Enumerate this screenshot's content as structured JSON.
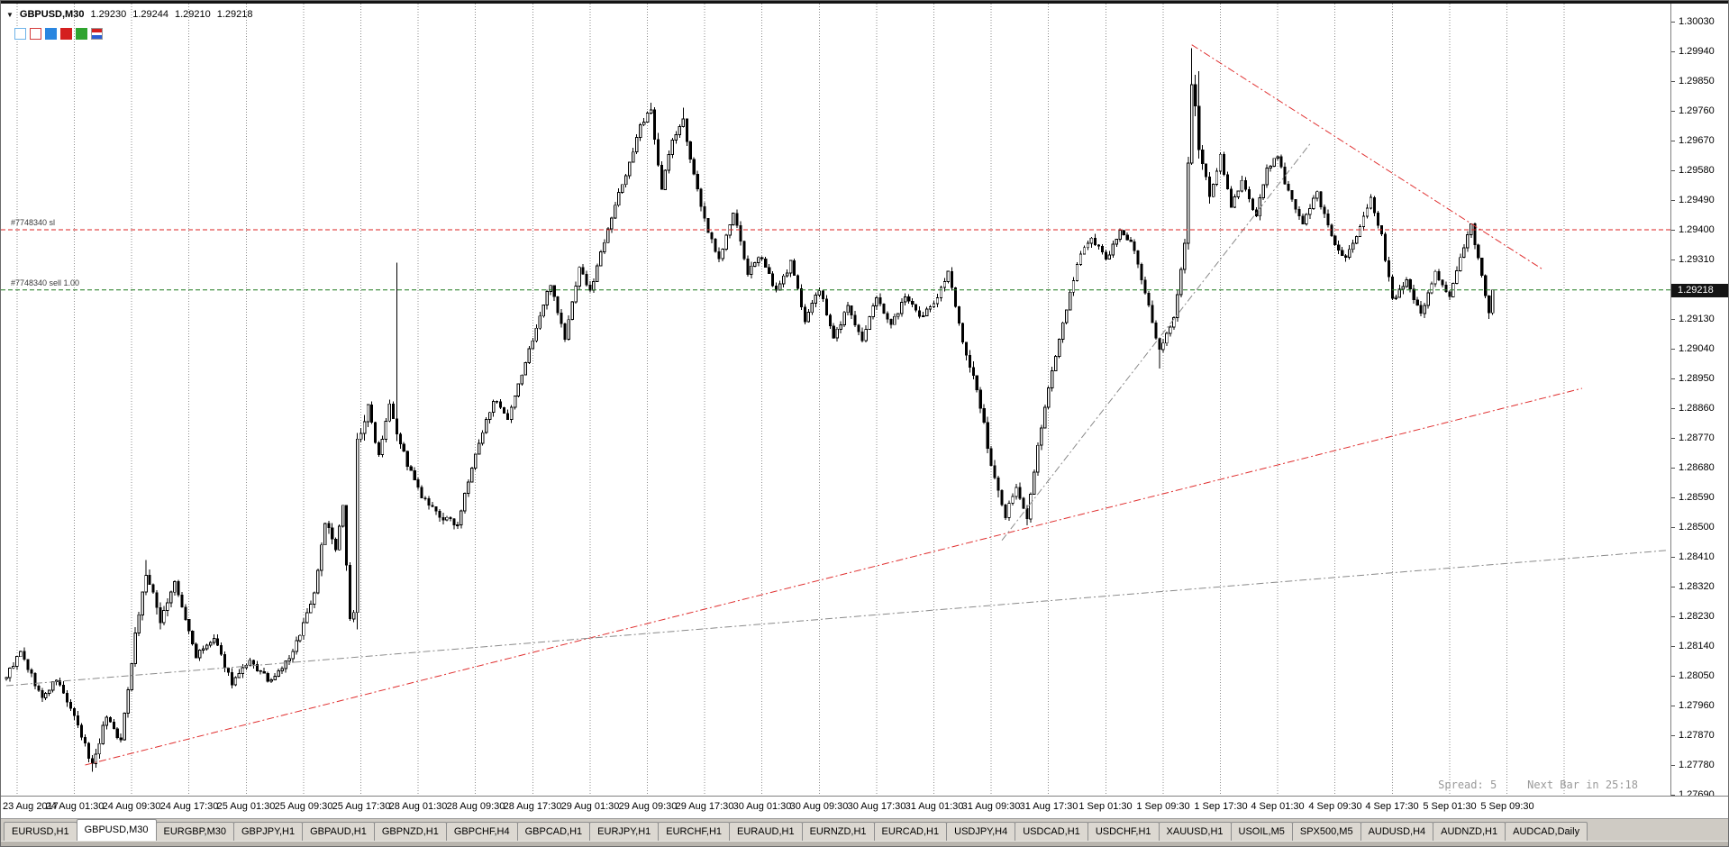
{
  "header": {
    "collapse_icon": "▼",
    "symbol": "GBPUSD,M30",
    "open": "1.29230",
    "high": "1.29244",
    "low": "1.29210",
    "close": "1.29218"
  },
  "toolbar": {
    "swatches": [
      {
        "name": "outlined-blue-swatch",
        "fill": "#ffffff",
        "border": "#6fb3e8"
      },
      {
        "name": "outlined-red-swatch",
        "fill": "#ffffff",
        "border": "#d43c3c"
      },
      {
        "name": "blue-swatch",
        "fill": "#2a86e0",
        "border": "#2a86e0"
      },
      {
        "name": "red-swatch",
        "fill": "#d41f1f",
        "border": "#d41f1f"
      },
      {
        "name": "green-swatch",
        "fill": "#2fa42f",
        "border": "#2fa42f"
      },
      {
        "name": "striped-swatch",
        "stripes": [
          "#d41f1f",
          "#ffffff",
          "#2a5fd4"
        ]
      }
    ]
  },
  "plot": {
    "price_badge": "1.29218",
    "spread_label": "Spread: 5",
    "next_bar_label": "Next Bar in 25:18"
  },
  "chart_data": {
    "type": "candlestick",
    "instrument": "GBPUSD",
    "timeframe": "M30",
    "current": {
      "open": 1.2923,
      "high": 1.29244,
      "low": 1.2921,
      "close": 1.29218
    },
    "price_axis": {
      "top": 1.3003,
      "bottom": 1.2769,
      "step": 0.0009
    },
    "price_labels": [
      "1.30030",
      "1.29940",
      "1.29850",
      "1.29760",
      "1.29670",
      "1.29580",
      "1.29490",
      "1.29400",
      "1.29310",
      "1.29220",
      "1.29130",
      "1.29040",
      "1.28950",
      "1.28860",
      "1.28770",
      "1.28680",
      "1.28590",
      "1.28500",
      "1.28410",
      "1.28320",
      "1.28230",
      "1.28140",
      "1.28050",
      "1.27960",
      "1.27870",
      "1.27780",
      "1.27690"
    ],
    "time_labels": [
      "23 Aug 2017",
      "24 Aug 01:30",
      "24 Aug 09:30",
      "24 Aug 17:30",
      "25 Aug 01:30",
      "25 Aug 09:30",
      "25 Aug 17:30",
      "28 Aug 01:30",
      "28 Aug 09:30",
      "28 Aug 17:30",
      "29 Aug 01:30",
      "29 Aug 09:30",
      "29 Aug 17:30",
      "30 Aug 01:30",
      "30 Aug 09:30",
      "30 Aug 17:30",
      "31 Aug 01:30",
      "31 Aug 09:30",
      "31 Aug 17:30",
      "1 Sep 01:30",
      "1 Sep 09:30",
      "1 Sep 17:30",
      "4 Sep 01:30",
      "4 Sep 09:30",
      "4 Sep 17:30",
      "5 Sep 01:30",
      "5 Sep 09:30"
    ],
    "bars_total": 416,
    "first_label_bar": 3,
    "label_every_bars": 16,
    "waypoints": [
      [
        0,
        1.2805,
        2
      ],
      [
        4,
        1.2812,
        2
      ],
      [
        10,
        1.2798,
        2
      ],
      [
        14,
        1.2804,
        2
      ],
      [
        18,
        1.2795,
        2
      ],
      [
        24,
        1.2778,
        3
      ],
      [
        28,
        1.2793,
        2
      ],
      [
        32,
        1.2785,
        2
      ],
      [
        36,
        1.2818,
        3
      ],
      [
        39,
        1.2836,
        3
      ],
      [
        43,
        1.2822,
        3
      ],
      [
        47,
        1.2833,
        2
      ],
      [
        53,
        1.2811,
        2
      ],
      [
        58,
        1.2816,
        2
      ],
      [
        63,
        1.2803,
        2
      ],
      [
        68,
        1.2809,
        2
      ],
      [
        74,
        1.2803,
        2
      ],
      [
        80,
        1.2812,
        2
      ],
      [
        86,
        1.283,
        2
      ],
      [
        89,
        1.2852,
        3
      ],
      [
        92,
        1.2843,
        2
      ],
      [
        94,
        1.2856,
        2
      ],
      [
        96,
        1.2823,
        3
      ],
      [
        97,
        1.2824,
        2
      ],
      [
        98,
        1.2876,
        4
      ],
      [
        101,
        1.2886,
        3
      ],
      [
        104,
        1.2872,
        2
      ],
      [
        107,
        1.2888,
        2
      ],
      [
        109,
        1.2879,
        3
      ],
      [
        112,
        1.2869,
        2
      ],
      [
        116,
        1.2859,
        2
      ],
      [
        121,
        1.2853,
        2
      ],
      [
        126,
        1.2851,
        2
      ],
      [
        130,
        1.2868,
        2
      ],
      [
        136,
        1.2889,
        2
      ],
      [
        140,
        1.2882,
        2
      ],
      [
        147,
        1.2907,
        2
      ],
      [
        152,
        1.2924,
        2
      ],
      [
        156,
        1.2907,
        2
      ],
      [
        160,
        1.2929,
        2
      ],
      [
        163,
        1.2921,
        2
      ],
      [
        168,
        1.2941,
        2
      ],
      [
        173,
        1.2957,
        2
      ],
      [
        177,
        1.2971,
        2
      ],
      [
        180,
        1.2976,
        3
      ],
      [
        183,
        1.2953,
        3
      ],
      [
        186,
        1.2967,
        2
      ],
      [
        189,
        1.2973,
        2
      ],
      [
        192,
        1.2956,
        2
      ],
      [
        195,
        1.2943,
        2
      ],
      [
        199,
        1.2931,
        2
      ],
      [
        203,
        1.2945,
        2
      ],
      [
        207,
        1.2927,
        2
      ],
      [
        211,
        1.2932,
        2
      ],
      [
        215,
        1.2921,
        2
      ],
      [
        219,
        1.293,
        2
      ],
      [
        223,
        1.2913,
        2
      ],
      [
        227,
        1.2922,
        2
      ],
      [
        231,
        1.2907,
        2
      ],
      [
        235,
        1.2917,
        2
      ],
      [
        239,
        1.2906,
        2
      ],
      [
        243,
        1.292,
        2
      ],
      [
        247,
        1.2911,
        2
      ],
      [
        251,
        1.292,
        2
      ],
      [
        255,
        1.2913,
        2
      ],
      [
        259,
        1.2918,
        2
      ],
      [
        263,
        1.2927,
        2
      ],
      [
        267,
        1.2906,
        2
      ],
      [
        271,
        1.2892,
        3
      ],
      [
        275,
        1.2869,
        3
      ],
      [
        279,
        1.2854,
        3
      ],
      [
        282,
        1.2862,
        2
      ],
      [
        285,
        1.2852,
        2
      ],
      [
        288,
        1.2875,
        3
      ],
      [
        291,
        1.2892,
        2
      ],
      [
        295,
        1.2911,
        2
      ],
      [
        299,
        1.293,
        2
      ],
      [
        303,
        1.2938,
        2
      ],
      [
        307,
        1.2931,
        2
      ],
      [
        311,
        1.294,
        2
      ],
      [
        315,
        1.2934,
        2
      ],
      [
        319,
        1.2917,
        2
      ],
      [
        322,
        1.2903,
        2
      ],
      [
        326,
        1.2913,
        2
      ],
      [
        329,
        1.2936,
        3
      ],
      [
        331,
        1.2986,
        5
      ],
      [
        333,
        1.2965,
        4
      ],
      [
        336,
        1.295,
        3
      ],
      [
        339,
        1.2962,
        2
      ],
      [
        342,
        1.2947,
        2
      ],
      [
        345,
        1.2955,
        2
      ],
      [
        349,
        1.2944,
        2
      ],
      [
        352,
        1.2959,
        2
      ],
      [
        355,
        1.2962,
        2
      ],
      [
        358,
        1.2951,
        2
      ],
      [
        362,
        1.2942,
        2
      ],
      [
        366,
        1.2951,
        2
      ],
      [
        370,
        1.2938,
        2
      ],
      [
        374,
        1.2931,
        2
      ],
      [
        378,
        1.2941,
        2
      ],
      [
        381,
        1.2949,
        2
      ],
      [
        384,
        1.2938,
        2
      ],
      [
        387,
        1.2918,
        3
      ],
      [
        391,
        1.2924,
        2
      ],
      [
        395,
        1.2914,
        2
      ],
      [
        399,
        1.2927,
        2
      ],
      [
        403,
        1.292,
        2
      ],
      [
        406,
        1.2932,
        2
      ],
      [
        409,
        1.2941,
        2
      ],
      [
        412,
        1.2926,
        2
      ],
      [
        414,
        1.2915,
        2
      ],
      [
        415,
        1.29218,
        1
      ]
    ],
    "forced_wicks": [
      [
        24,
        "low",
        1.2776
      ],
      [
        39,
        "high",
        1.284
      ],
      [
        98,
        "low",
        1.2819
      ],
      [
        109,
        "high",
        1.293
      ],
      [
        180,
        "high",
        1.29785
      ],
      [
        189,
        "high",
        1.2977
      ],
      [
        285,
        "low",
        1.28505
      ],
      [
        322,
        "low",
        1.2898
      ],
      [
        331,
        "high",
        1.2995
      ],
      [
        333,
        "high",
        1.2988
      ],
      [
        414,
        "low",
        1.2913
      ]
    ],
    "trendlines": [
      {
        "name": "descending-red",
        "x1_bar": 331,
        "price1": 1.2996,
        "x2_bar": 429,
        "price2": 1.2928,
        "color": "#e03030",
        "style": "dashdot"
      },
      {
        "name": "ascending-red",
        "x1_bar": 22,
        "price1": 1.2778,
        "x2_bar": 440,
        "price2": 1.2892,
        "color": "#e03030",
        "style": "dashdot"
      },
      {
        "name": "ascending-gray-steep",
        "x1_bar": 278,
        "price1": 1.2846,
        "x2_bar": 364,
        "price2": 1.2966,
        "color": "#8a8a8a",
        "style": "dashdot"
      },
      {
        "name": "ascending-gray-long",
        "x1_bar": 0,
        "price1": 1.2802,
        "x2_bar": 464,
        "price2": 1.2843,
        "color": "#8a8a8a",
        "style": "dashdot"
      }
    ],
    "order_lines": [
      {
        "label": "#7748340 sl",
        "price": 1.294,
        "color": "#dd2222"
      },
      {
        "label": "#7748340 sell 1.00",
        "price": 1.29218,
        "color": "#1f7a1f"
      }
    ]
  },
  "tabs": [
    {
      "label": "EURUSD,H1",
      "active": false
    },
    {
      "label": "GBPUSD,M30",
      "active": true
    },
    {
      "label": "EURGBP,M30",
      "active": false
    },
    {
      "label": "GBPJPY,H1",
      "active": false
    },
    {
      "label": "GBPAUD,H1",
      "active": false
    },
    {
      "label": "GBPNZD,H1",
      "active": false
    },
    {
      "label": "GBPCHF,H4",
      "active": false
    },
    {
      "label": "GBPCAD,H1",
      "active": false
    },
    {
      "label": "EURJPY,H1",
      "active": false
    },
    {
      "label": "EURCHF,H1",
      "active": false
    },
    {
      "label": "EURAUD,H1",
      "active": false
    },
    {
      "label": "EURNZD,H1",
      "active": false
    },
    {
      "label": "EURCAD,H1",
      "active": false
    },
    {
      "label": "USDJPY,H4",
      "active": false
    },
    {
      "label": "USDCAD,H1",
      "active": false
    },
    {
      "label": "USDCHF,H1",
      "active": false
    },
    {
      "label": "XAUUSD,H1",
      "active": false
    },
    {
      "label": "USOIL,M5",
      "active": false
    },
    {
      "label": "SPX500,M5",
      "active": false
    },
    {
      "label": "AUDUSD,H4",
      "active": false
    },
    {
      "label": "AUDNZD,H1",
      "active": false
    },
    {
      "label": "AUDCAD,Daily",
      "active": false
    }
  ]
}
